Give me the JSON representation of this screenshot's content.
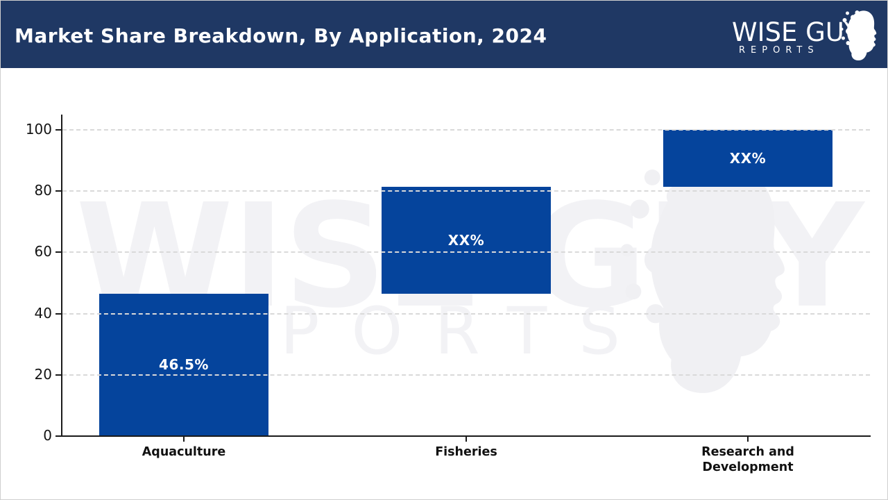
{
  "header": {
    "title": "Market Share Breakdown, By Application, 2024",
    "logo": {
      "brand": "WISE GUY",
      "sub": "REPORTS"
    }
  },
  "watermark": {
    "brand": "WISE GUY",
    "sub": "REPORTS"
  },
  "chart_data": {
    "type": "bar",
    "variant": "stacked_percentage_waterfall",
    "title": "Market Share Breakdown, By Application, 2024",
    "categories": [
      "Aquaculture",
      "Fisheries",
      "Research and Development"
    ],
    "segments": [
      {
        "category": "Aquaculture",
        "start": 0,
        "end": 46.5,
        "value_label": "46.5%"
      },
      {
        "category": "Fisheries",
        "start": 46.5,
        "end": 81.5,
        "value_label": "XX%"
      },
      {
        "category": "Research and Development",
        "start": 81.5,
        "end": 100,
        "value_label": "XX%"
      }
    ],
    "yticks": [
      0,
      20,
      40,
      60,
      80,
      100
    ],
    "ylim": [
      0,
      105
    ],
    "xlabel": "",
    "ylabel": "",
    "legend": "none",
    "grid": {
      "horizontal": true,
      "style": "dashed"
    },
    "bar_color": "#05449c"
  },
  "colors": {
    "header_bg": "#1f3864",
    "bar": "#05449c",
    "grid": "#d9d9d9",
    "axis": "#1a1a1a",
    "text": "#111111",
    "watermark": "#f2f2f5",
    "border": "#cfcfcf"
  }
}
